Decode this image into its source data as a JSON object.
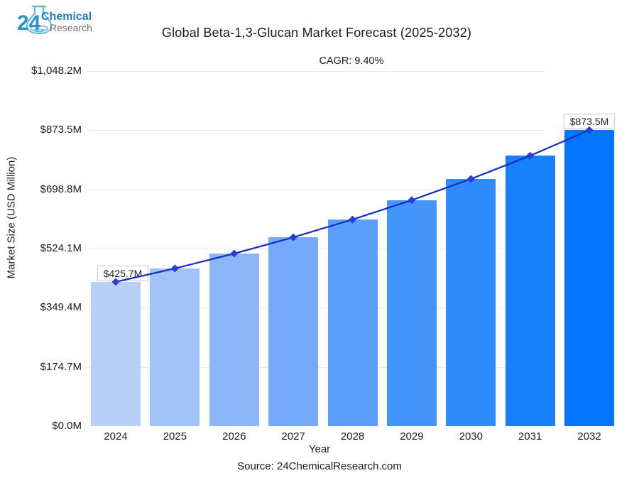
{
  "logo": {
    "number": "24",
    "line1": "Chemical",
    "line2": "Research"
  },
  "header": {
    "title": "Global Beta-1,3-Glucan Market Forecast (2025-2032)",
    "subtitle": "CAGR: 9.40%"
  },
  "footer": {
    "source": "Source: 24ChemicalResearch.com"
  },
  "chart_data": {
    "type": "bar",
    "overlay": "line",
    "title": "Global Beta-1,3-Glucan Market Forecast (2025-2032)",
    "subtitle": "CAGR: 9.40%",
    "cagr_percent": 9.4,
    "xlabel": "Year",
    "ylabel": "Market Size (USD Million)",
    "unit": "USD Million",
    "categories": [
      "2024",
      "2025",
      "2026",
      "2027",
      "2028",
      "2029",
      "2030",
      "2031",
      "2032"
    ],
    "values": [
      425.7,
      465.7,
      509.5,
      557.4,
      609.8,
      667.1,
      729.8,
      798.4,
      873.5
    ],
    "ylim": [
      0,
      1048.2
    ],
    "y_ticks": [
      "$0.0M",
      "$174.7M",
      "$349.4M",
      "$524.1M",
      "$698.8M",
      "$873.5M",
      "$1,048.2M"
    ],
    "grid": true,
    "legend": false,
    "bar_colors": [
      "#b8cff7",
      "#a1c3f8",
      "#8cb6f9",
      "#75aafa",
      "#5a9ffb",
      "#4495fb",
      "#2e8bfc",
      "#1980fc",
      "#0475fd"
    ],
    "line_color": "#1530c0",
    "marker_color": "#2140d6",
    "data_labels": [
      {
        "index": 0,
        "text": "$425.7M"
      },
      {
        "index": 8,
        "text": "$873.5M"
      }
    ]
  }
}
